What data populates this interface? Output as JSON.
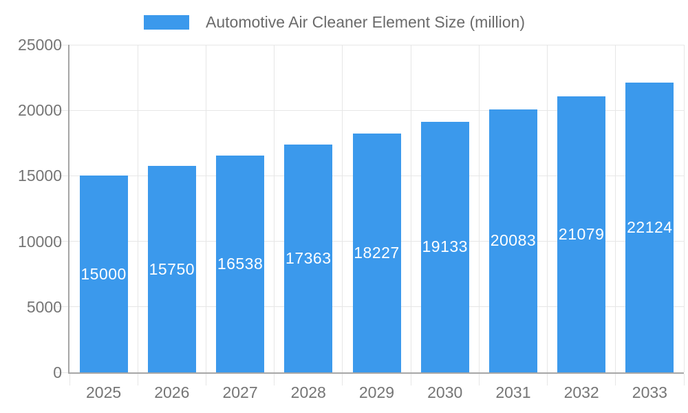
{
  "chart_data": {
    "type": "bar",
    "title": "",
    "legend": "Automotive Air Cleaner Element Size (million)",
    "legend_position": "top",
    "categories": [
      "2025",
      "2026",
      "2027",
      "2028",
      "2029",
      "2030",
      "2031",
      "2032",
      "2033"
    ],
    "values": [
      15000,
      15750,
      16538,
      17363,
      18227,
      19133,
      20083,
      21079,
      22124
    ],
    "xlabel": "",
    "ylabel": "",
    "ylim": [
      0,
      25000
    ],
    "ytick_step": 5000,
    "ytick_labels": [
      "0",
      "5000",
      "10000",
      "15000",
      "20000",
      "25000"
    ],
    "grid": true,
    "bar_value_labels_visible": true,
    "colors": {
      "bar": "#3B99EC",
      "bar_value_label": "#FFFFFF",
      "axis_tick_label": "#757575",
      "legend_text": "#6B6B6B",
      "gridline": "#E6E6E6",
      "axis_line": "#A6A6A6",
      "background": "#FFFFFF"
    }
  }
}
